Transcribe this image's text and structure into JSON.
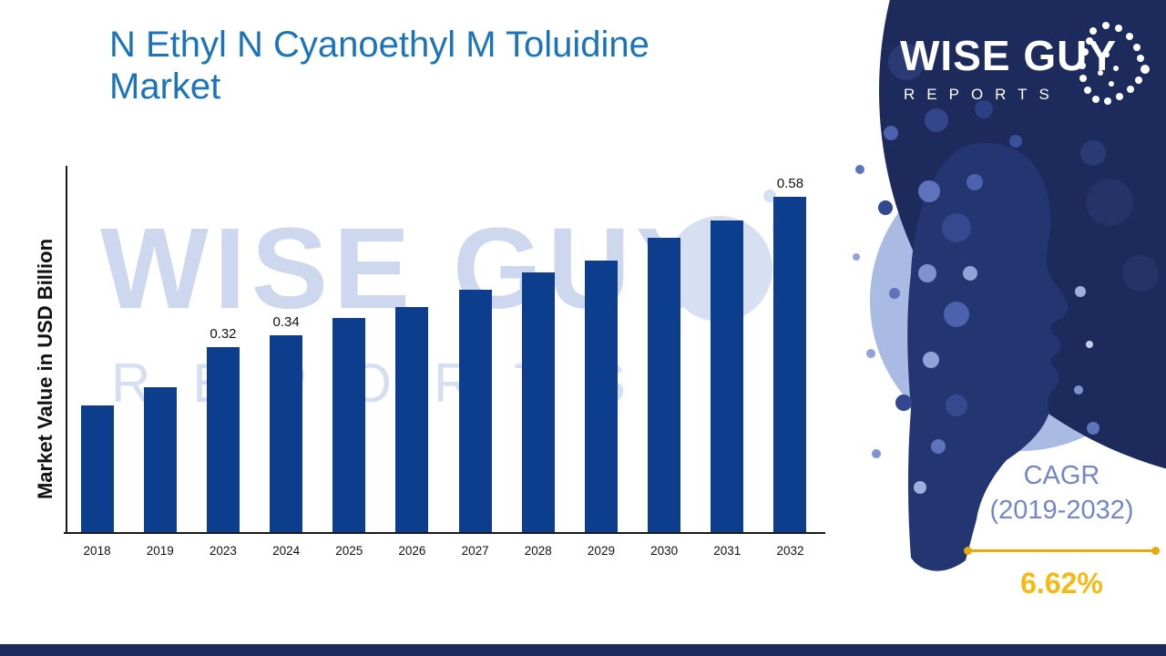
{
  "title": {
    "line1": "N Ethyl N Cyanoethyl M Toluidine",
    "line2": "Market"
  },
  "chart_data": {
    "type": "bar",
    "title": "N Ethyl N Cyanoethyl M Toluidine Market",
    "categories": [
      "2018",
      "2019",
      "2023",
      "2024",
      "2025",
      "2026",
      "2027",
      "2028",
      "2029",
      "2030",
      "2031",
      "2032"
    ],
    "values": [
      0.22,
      0.25,
      0.32,
      0.34,
      0.37,
      0.39,
      0.42,
      0.45,
      0.47,
      0.51,
      0.54,
      0.58
    ],
    "data_labels": [
      "",
      "",
      "0.32",
      "0.34",
      "",
      "",
      "",
      "",
      "",
      "",
      "",
      "0.58"
    ],
    "ylabel": "Market Value in USD Billion",
    "xlabel": "",
    "ylim": [
      0,
      0.62
    ],
    "bar_color": "#0d3d8d",
    "grid": false,
    "legend": false
  },
  "watermark": {
    "line1": "WISE GUY",
    "line2": "REPORTS"
  },
  "logo": {
    "name": "WISE GUY",
    "subtitle": "REPORTS"
  },
  "cagr": {
    "label": "CAGR",
    "range": "(2019-2032)",
    "value": "6.62%"
  },
  "colors": {
    "title_blue": "#1b74b9",
    "bar_blue": "#0d3d8d",
    "panel_navy": "#1c2a5c",
    "accent_gold": "#f5b914",
    "cagr_text": "#7486c5",
    "watermark_blue": "#cdd7ee"
  }
}
